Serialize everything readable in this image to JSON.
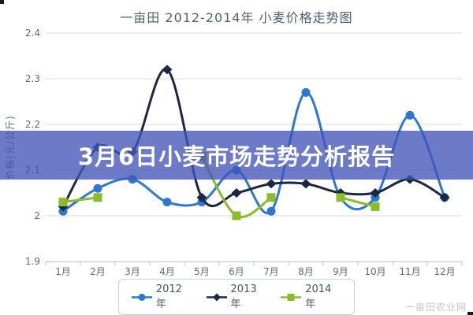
{
  "chart_data": {
    "type": "line",
    "title": "一亩田 2012-2014年 小麦价格走势图",
    "ylabel": "价格(元/公斤)",
    "xlabel": "",
    "categories": [
      "1月",
      "2月",
      "3月",
      "4月",
      "5月",
      "6月",
      "7月",
      "8月",
      "9月",
      "10月",
      "11月",
      "12月"
    ],
    "ylim": [
      1.9,
      2.4
    ],
    "yticks": [
      {
        "value": 2.4,
        "label": "2.4"
      },
      {
        "value": 2.3,
        "label": "2.3"
      },
      {
        "value": 2.2,
        "label": "2.2"
      },
      {
        "value": 2.1,
        "label": "2.1"
      },
      {
        "value": 2.0,
        "label": "2"
      },
      {
        "value": 1.9,
        "label": "1.9"
      }
    ],
    "grid": true,
    "smooth": true,
    "legend_position": "bottom",
    "series": [
      {
        "name": "2012年",
        "color": "#2e77d0",
        "marker": "circle",
        "values": [
          2.01,
          2.06,
          2.08,
          2.03,
          2.03,
          2.1,
          2.01,
          2.27,
          2.04,
          2.04,
          2.22,
          2.04
        ]
      },
      {
        "name": "2013年",
        "color": "#1a2940",
        "marker": "diamond",
        "values": [
          2.02,
          2.15,
          2.14,
          2.32,
          2.04,
          2.05,
          2.07,
          2.07,
          2.05,
          2.05,
          2.08,
          2.04
        ]
      },
      {
        "name": "2014年",
        "color": "#8abb2a",
        "marker": "square",
        "values": [
          2.03,
          2.04,
          null,
          null,
          2.13,
          2.0,
          2.04,
          null,
          2.04,
          2.02,
          null,
          null
        ]
      }
    ]
  },
  "overlay": {
    "text": "3月6日小麦市场走势分析报告",
    "bg_color": "#4254b8",
    "opacity": 0.78,
    "text_color": "#ffffff"
  },
  "watermark": "一亩田农业网",
  "colors": {
    "title": "#4c6172",
    "axis_text": "#5f6b74",
    "grid": "#d6dade",
    "axis_line": "#b9c0c7",
    "background": "#ffffff"
  }
}
